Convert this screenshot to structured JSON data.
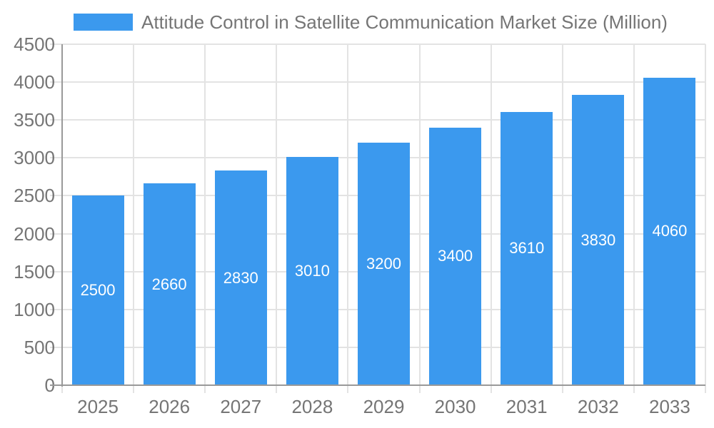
{
  "chart_data": {
    "type": "bar",
    "title": "Attitude Control in Satellite Communication Market Size (Million)",
    "legend": [
      {
        "label": "Attitude Control in Satellite Communication Market Size (Million)",
        "color": "#3B99EE"
      }
    ],
    "categories": [
      "2025",
      "2026",
      "2027",
      "2028",
      "2029",
      "2030",
      "2031",
      "2032",
      "2033"
    ],
    "series": [
      {
        "name": "Attitude Control in Satellite Communication Market Size (Million)",
        "values": [
          2500,
          2660,
          2830,
          3010,
          3200,
          3400,
          3610,
          3830,
          4060
        ]
      }
    ],
    "data_labels_shown": true,
    "xlabel": "",
    "ylabel": "",
    "ylim": [
      0,
      4500
    ],
    "ytick_step": 500,
    "yticks": [
      0,
      500,
      1000,
      1500,
      2000,
      2500,
      3000,
      3500,
      4000,
      4500
    ],
    "grid": "on",
    "legend_position": "top-left",
    "colors": {
      "bar": "#3B99EE",
      "bar_label_text": "#ffffff",
      "grid_line": "#E3E3E3",
      "axis_line": "#999999",
      "tick_text": "#757575",
      "title_text": "#757575",
      "background": "#ffffff"
    }
  }
}
